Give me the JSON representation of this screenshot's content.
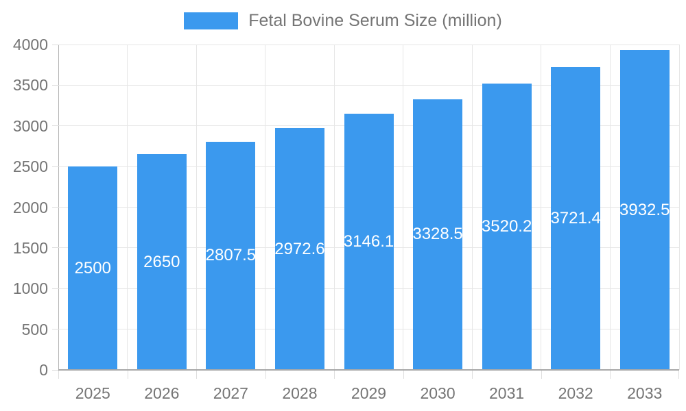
{
  "chart_data": {
    "type": "bar",
    "title": "",
    "legend": {
      "label": "Fetal Bovine Serum Size (million)",
      "position": "top-center"
    },
    "categories": [
      "2025",
      "2026",
      "2027",
      "2028",
      "2029",
      "2030",
      "2031",
      "2032",
      "2033"
    ],
    "series": [
      {
        "name": "Fetal Bovine Serum Size (million)",
        "values": [
          2500,
          2650,
          2807.5,
          2972.6,
          3146.1,
          3328.5,
          3520.2,
          3721.4,
          3932.5
        ]
      }
    ],
    "value_labels": [
      "2500",
      "2650",
      "2807.5",
      "2972.6",
      "3146.1",
      "3328.5",
      "3520.2",
      "3721.4",
      "3932.5"
    ],
    "xlabel": "",
    "ylabel": "",
    "ylim": [
      0,
      4000
    ],
    "yticks": [
      0,
      500,
      1000,
      1500,
      2000,
      2500,
      3000,
      3500,
      4000
    ],
    "grid": true,
    "legend_position": "top",
    "colors": {
      "bar": "#3b99ee",
      "grid": "#e6e6e6",
      "axis": "#a8a8a8",
      "axis_text": "#757575",
      "bar_label_text": "#ffffff",
      "background": "#ffffff"
    }
  }
}
